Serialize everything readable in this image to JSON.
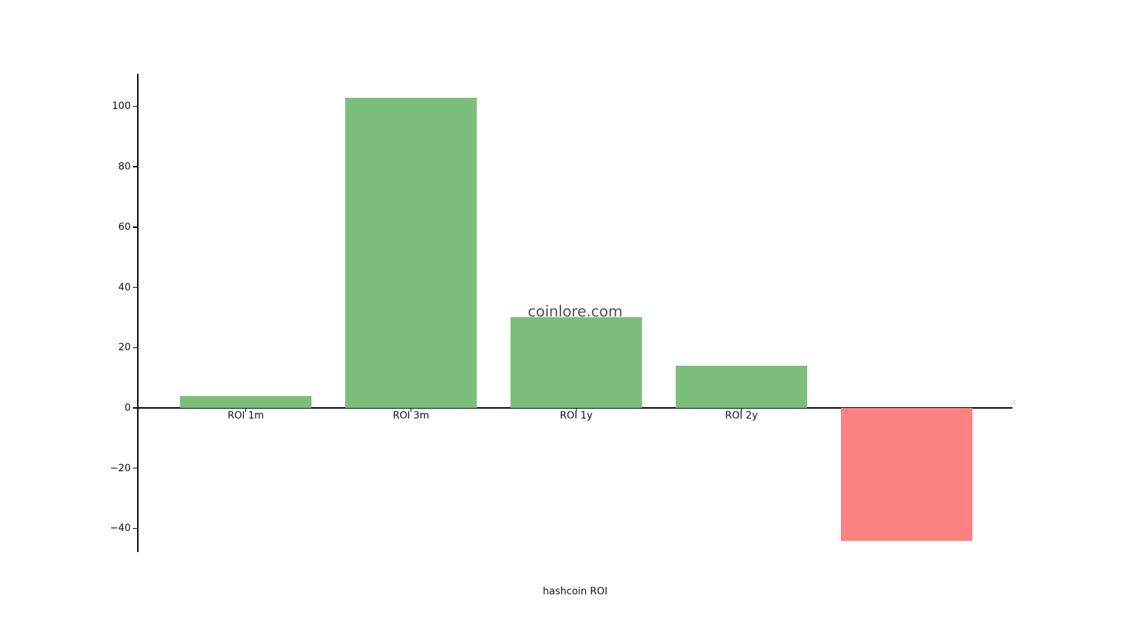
{
  "chart_data": {
    "type": "bar",
    "title": "",
    "categories": [
      "ROI 1m",
      "ROI 3m",
      "ROI 1y",
      "ROI 2y",
      ""
    ],
    "values": [
      4,
      103,
      30,
      14,
      -44
    ],
    "series": [
      {
        "name": "hashcoin ROI",
        "values": [
          4,
          103,
          30,
          14,
          -44
        ]
      }
    ],
    "xlabel": "hashcoin ROI",
    "ylabel": "",
    "yticks": [
      -40,
      -20,
      0,
      20,
      40,
      60,
      80,
      100
    ],
    "ylim": [
      -48,
      111
    ],
    "grid": false,
    "legend_position": "none",
    "baseline": 0,
    "positive_color": "#7cbe7c",
    "negative_color": "#fc8181",
    "axis_color": "#000000",
    "tick_label_color": "#111111",
    "watermark": "coinlore.com",
    "watermark_color": "#4f4f4f",
    "axis_end_mark": "×"
  }
}
